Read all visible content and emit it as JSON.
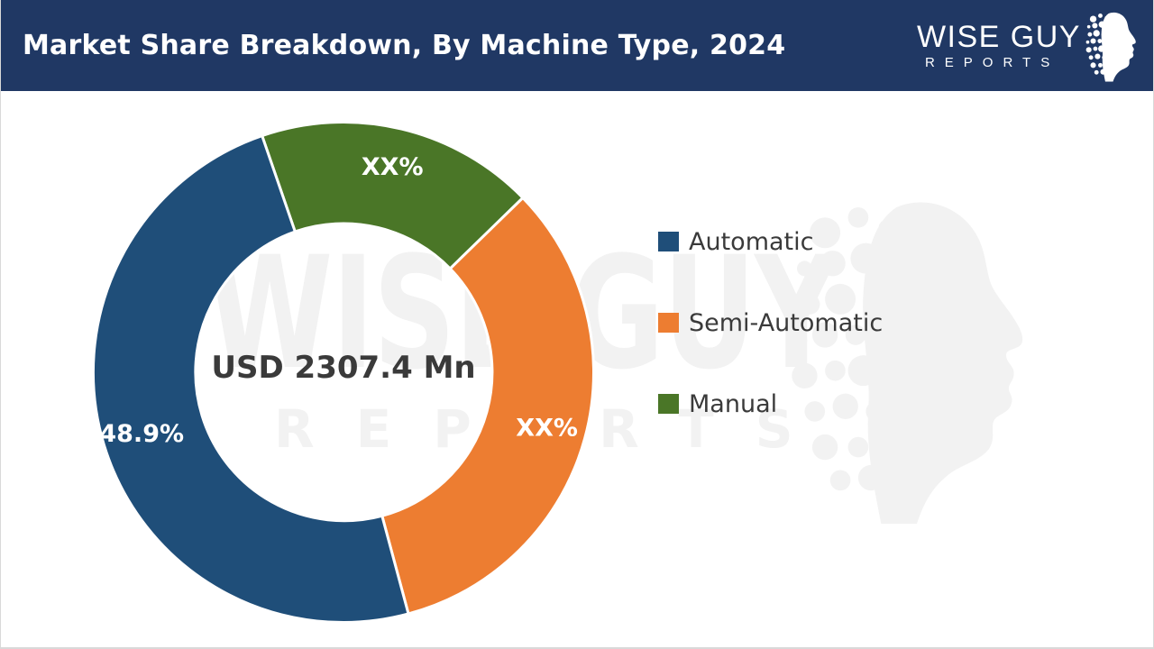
{
  "header": {
    "title": "Market Share Breakdown, By Machine Type, 2024",
    "logo": {
      "line1": "WISE GUY",
      "line2": "REPORTS"
    }
  },
  "watermark": {
    "line1": "WISE GUY",
    "line2": "REPORTS"
  },
  "chart_data": {
    "type": "pie",
    "subtype": "donut",
    "title": "Market Share Breakdown, By Machine Type, 2024",
    "center_label": "USD 2307.4 Mn",
    "units": "percent share",
    "start_angle_deg": -19,
    "direction": "clockwise",
    "slices": [
      {
        "name": "Manual",
        "value_pct": 18.0,
        "label": "XX%",
        "color": "#4A7627"
      },
      {
        "name": "Semi-Automatic",
        "value_pct": 33.1,
        "label": "XX%",
        "color": "#ED7D31"
      },
      {
        "name": "Automatic",
        "value_pct": 48.9,
        "label": "48.9%",
        "color": "#1F4E79"
      }
    ],
    "legend": [
      {
        "name": "Automatic",
        "color": "#1F4E79"
      },
      {
        "name": "Semi-Automatic",
        "color": "#ED7D31"
      },
      {
        "name": "Manual",
        "color": "#4A7627"
      }
    ],
    "legend_position": "right"
  },
  "colors": {
    "header_bg": "#203864",
    "text_dark": "#3A3A3A",
    "watermark": "#F2F2F2",
    "border": "#D9D9D9",
    "slice_gap": "#FFFFFF"
  }
}
